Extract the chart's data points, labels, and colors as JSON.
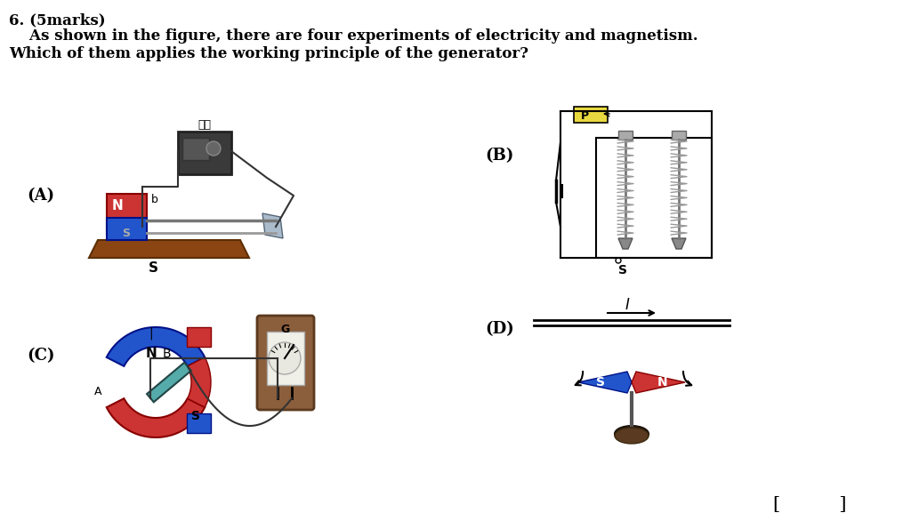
{
  "title_line1": "6. (5marks)",
  "title_line2": "    As shown in the figure, there are four experiments of electricity and magnetism.",
  "title_line3": "Which of them applies the working principle of the generator?",
  "label_A": "(A)",
  "label_B": "(B)",
  "label_C": "(C)",
  "label_D": "(D)",
  "bg_color": "#ffffff",
  "text_color": "#000000",
  "magnet_N_color": "#cc2222",
  "magnet_S_color": "#2255cc",
  "wire_color": "#333333"
}
